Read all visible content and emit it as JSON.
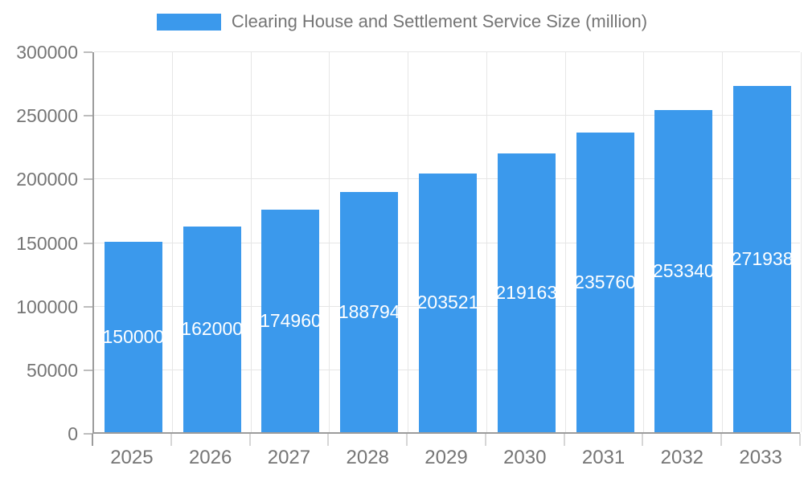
{
  "legend": {
    "label": "Clearing House and Settlement Service Size (million)"
  },
  "chart_data": {
    "type": "bar",
    "title": "Clearing House and Settlement Service Size (million)",
    "categories": [
      "2025",
      "2026",
      "2027",
      "2028",
      "2029",
      "2030",
      "2031",
      "2032",
      "2033"
    ],
    "values": [
      150000,
      162000,
      174960,
      188794,
      203521,
      219163,
      235760,
      253340,
      271938
    ],
    "value_labels": [
      "150000",
      "162000",
      "174960",
      "188794",
      "203521",
      "219163",
      "235760",
      "253340",
      "271938"
    ],
    "xlabel": "",
    "ylabel": "",
    "ylim": [
      0,
      300000
    ],
    "yticks": [
      0,
      50000,
      100000,
      150000,
      200000,
      250000,
      300000
    ],
    "grid": true,
    "legend_position": "top",
    "colors": {
      "bar": "#3B99EC",
      "grid": "#e6e6e6",
      "axis": "#9c9c9c",
      "tick_text": "#757575",
      "value_text": "#ffffff",
      "background": "#ffffff"
    }
  }
}
